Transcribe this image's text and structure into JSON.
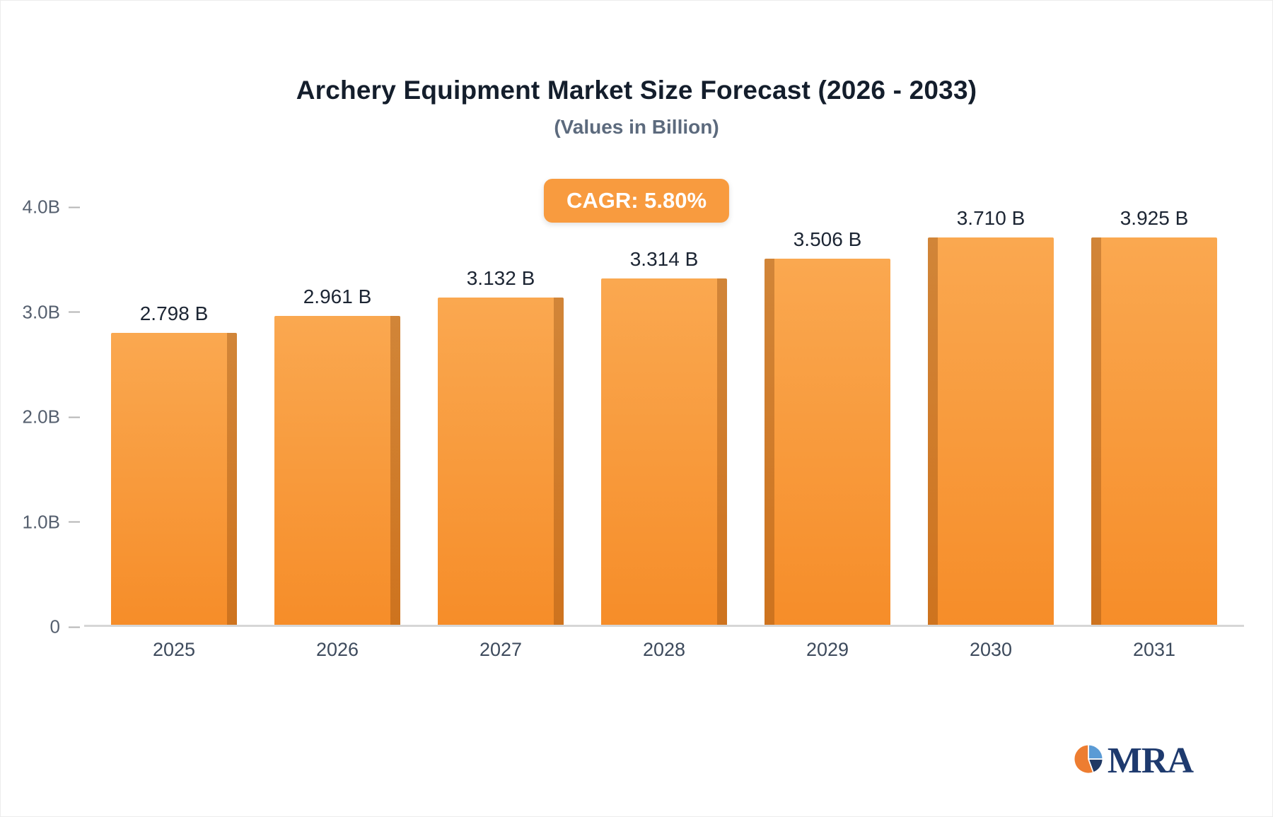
{
  "chart_data": {
    "type": "bar",
    "title": "Archery Equipment Market Size Forecast (2026 - 2033)",
    "subtitle": "(Values in Billion)",
    "badge": "CAGR: 5.80%",
    "categories": [
      "2025",
      "2026",
      "2027",
      "2028",
      "2029",
      "2030",
      "2031"
    ],
    "values": [
      2.798,
      2.961,
      3.132,
      3.314,
      3.506,
      3.71,
      3.925
    ],
    "value_labels": [
      "2.798 B",
      "2.961 B",
      "3.132 B",
      "3.314 B",
      "3.506 B",
      "3.710 B",
      "3.925 B"
    ],
    "xlabel": "",
    "ylabel": "",
    "ylim": [
      0,
      4.0
    ],
    "yticks": [
      "4.0B",
      "3.0B",
      "2.0B",
      "1.0B",
      "0"
    ],
    "ytick_values": [
      4.0,
      3.0,
      2.0,
      1.0,
      0
    ],
    "grid": false,
    "legend": "none",
    "bar_color": "#F79434",
    "bar_color_light": "#FAA850",
    "bar_edge_color": "#C97316",
    "badge_color": "#F89B3F"
  },
  "logo": {
    "text": "MRA",
    "icon_colors": {
      "orange": "#ED7D31",
      "blue": "#5B9BD5",
      "navy": "#1F3864"
    }
  }
}
